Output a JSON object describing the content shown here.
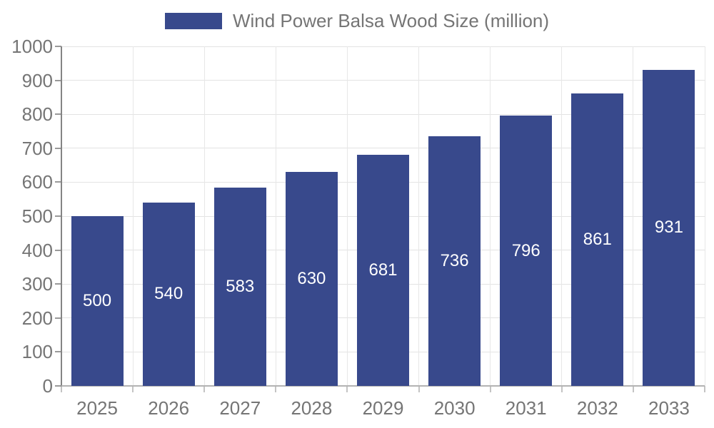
{
  "legend": {
    "label": "Wind Power Balsa Wood Size (million)"
  },
  "chart_data": {
    "type": "bar",
    "title": "Wind Power Balsa Wood Size (million)",
    "categories": [
      "2025",
      "2026",
      "2027",
      "2028",
      "2029",
      "2030",
      "2031",
      "2032",
      "2033"
    ],
    "values": [
      500,
      540,
      583,
      630,
      681,
      736,
      796,
      861,
      931
    ],
    "series": [
      {
        "name": "Wind Power Balsa Wood Size (million)",
        "values": [
          500,
          540,
          583,
          630,
          681,
          736,
          796,
          861,
          931
        ]
      }
    ],
    "xlabel": "",
    "ylabel": "",
    "ylim": [
      0,
      1000
    ],
    "y_ticks": [
      0,
      100,
      200,
      300,
      400,
      500,
      600,
      700,
      800,
      900,
      1000
    ],
    "grid": true,
    "legend_position": "top-center",
    "value_labels": "inside-center"
  },
  "colors": {
    "bar": "#38498C",
    "value_label": "#ffffff",
    "axis_text": "#757575",
    "grid_h": "#e3e3e3",
    "grid_v": "#e7e7e7",
    "y_axis_line": "#848484",
    "x_axis_line": "#b3b3b3",
    "y_tick": "#999999",
    "x_tick": "#c4c4c4",
    "background": "#ffffff"
  }
}
